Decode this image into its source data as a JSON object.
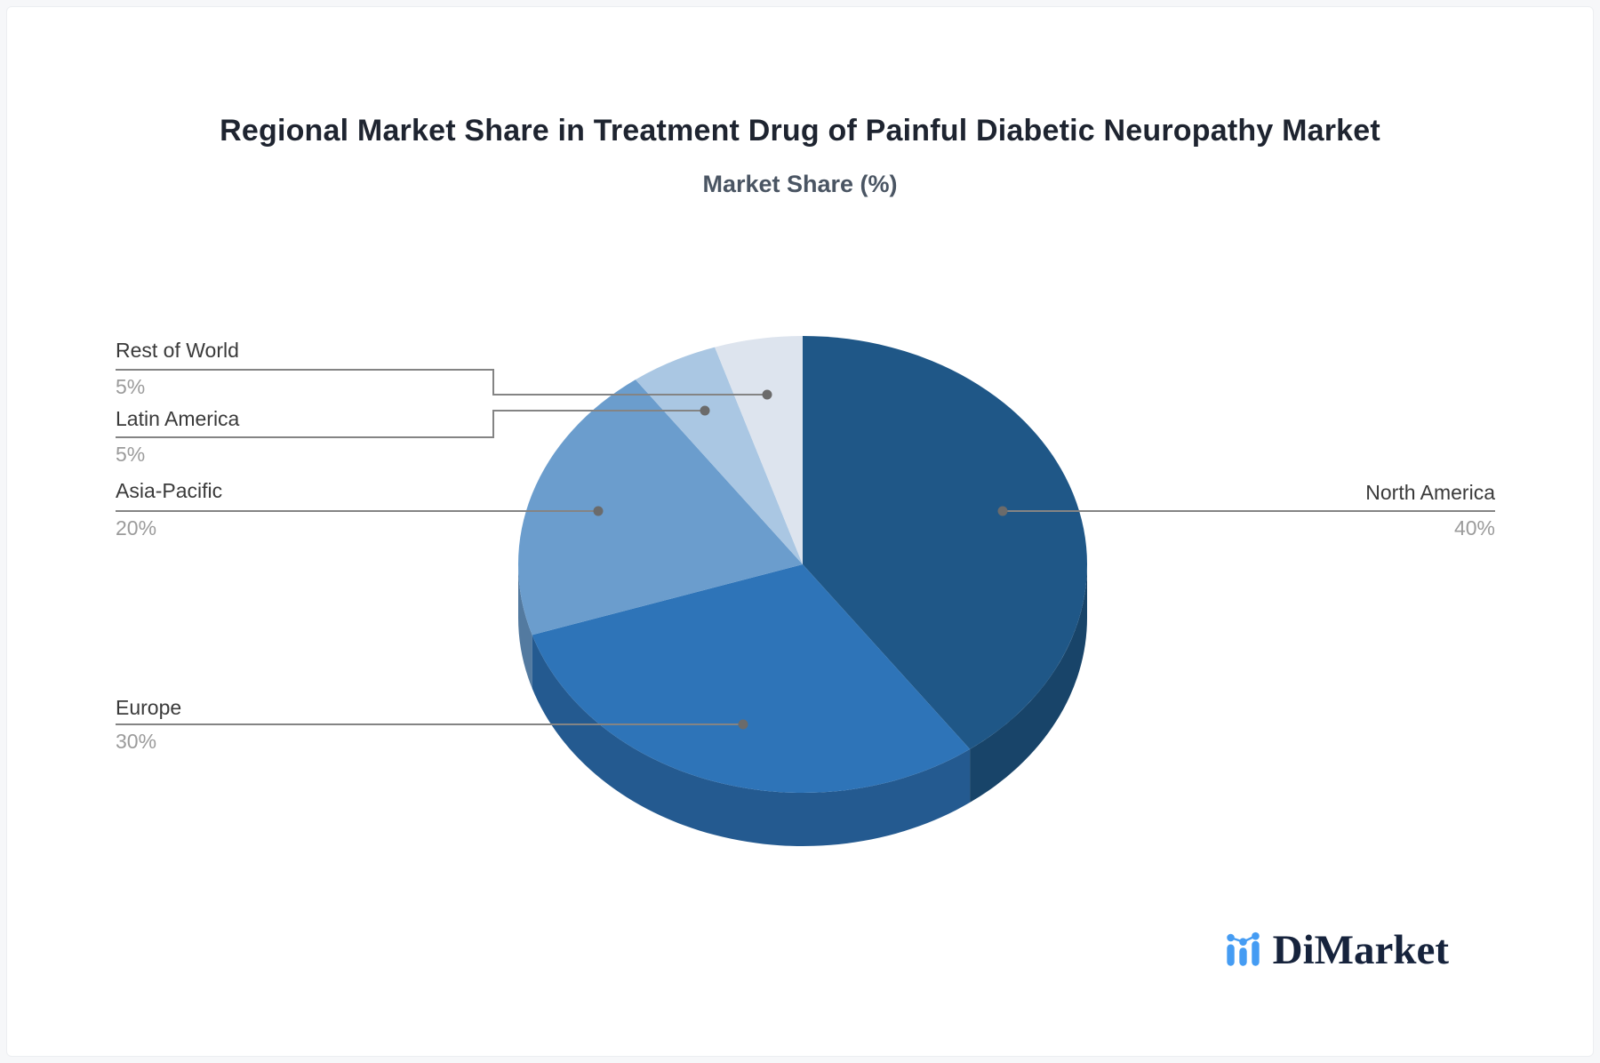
{
  "page": {
    "title": "Regional Market Share in Treatment Drug of Painful Diabetic Neuropathy Market",
    "subtitle": "Market Share (%)"
  },
  "chart_data": {
    "type": "pie",
    "title": "Regional Market Share in Treatment Drug of Painful Diabetic Neuropathy Market",
    "subtitle": "Market Share (%)",
    "unit": "%",
    "style": "3d-pie",
    "direction": "clockwise",
    "start_angle_deg": 0,
    "legend_position": "callout-labels",
    "slices": [
      {
        "label": "North America",
        "value": 40,
        "display": "40%",
        "color": "#1f5787"
      },
      {
        "label": "Europe",
        "value": 30,
        "display": "30%",
        "color": "#2e74b8"
      },
      {
        "label": "Asia-Pacific",
        "value": 20,
        "display": "20%",
        "color": "#6b9dcd"
      },
      {
        "label": "Latin America",
        "value": 5,
        "display": "5%",
        "color": "#aac7e3"
      },
      {
        "label": "Rest of World",
        "value": 5,
        "display": "5%",
        "color": "#dde4ee"
      }
    ]
  },
  "logo": {
    "brand": "DiMarket",
    "icon": "bar-line-chart-icon",
    "accent_color": "#459cf3",
    "text_color": "#16233c"
  },
  "colors": {
    "card_background": "#ffffff",
    "page_background": "#f6f7f9",
    "title": "#1e2430",
    "subtitle": "#4a5563",
    "label_text": "#3a3a3a",
    "percent_text": "#9b9b9b",
    "leader_line": "#848484",
    "leader_dot": "#6b6b6b"
  }
}
